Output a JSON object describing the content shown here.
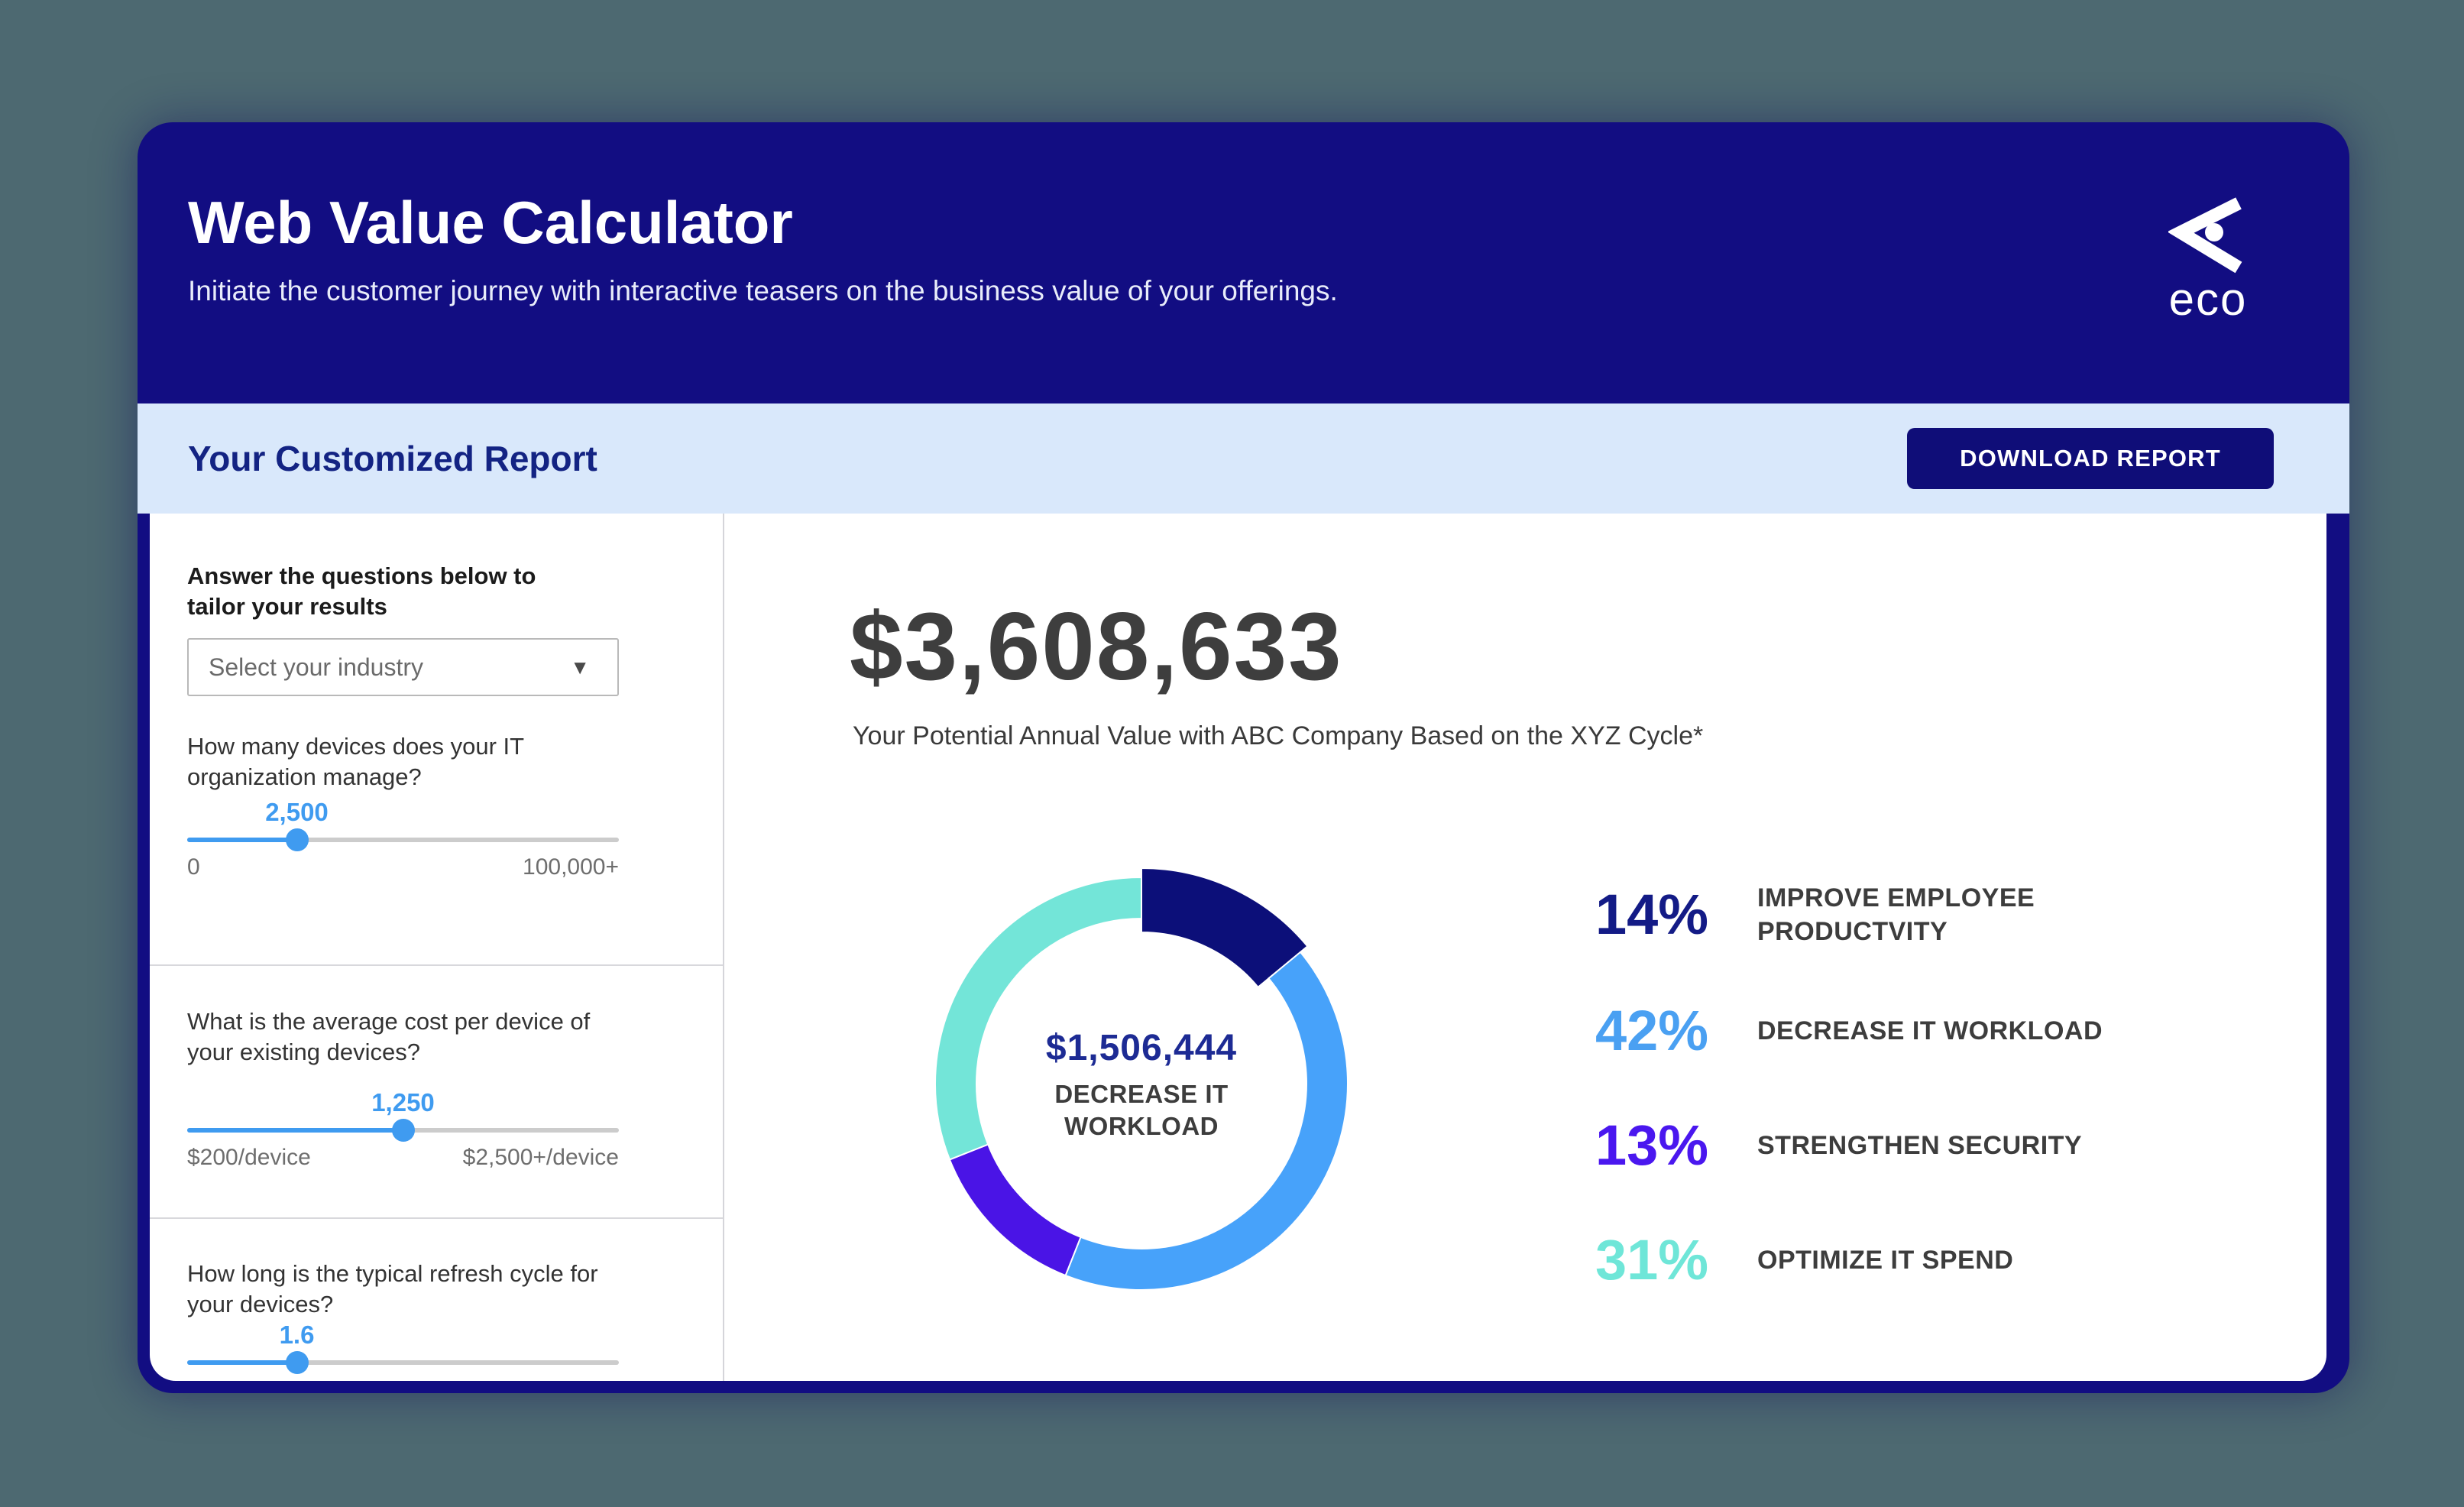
{
  "page": {
    "background_color": "#4d6971",
    "accent_navy": "#120d82",
    "accent_blue": "#3f9bf0"
  },
  "header": {
    "title": "Web Value Calculator",
    "subtitle": "Initiate the customer journey with interactive teasers on the business value of your offerings.",
    "logo_text": "eco"
  },
  "report_bar": {
    "title": "Your Customized Report",
    "download_label": "DOWNLOAD REPORT"
  },
  "sidebar": {
    "heading": "Answer the questions below to tailor your results",
    "industry_placeholder": "Select your industry",
    "questions": [
      {
        "text": "How many devices does your IT organization manage?",
        "value": "2,500",
        "position_pct": 25.4,
        "min_label": "0",
        "max_label": "100,000+"
      },
      {
        "text": "What is the average cost per device of your existing devices?",
        "value": "1,250",
        "position_pct": 50,
        "min_label": "$200/device",
        "max_label": "$2,500+/device"
      },
      {
        "text": "How long is the typical refresh cycle for your devices?",
        "value": "1.6",
        "position_pct": 25.4,
        "min_label": "",
        "max_label": ""
      }
    ]
  },
  "main": {
    "total_value": "$3,608,633",
    "total_caption": "Your Potential Annual Value with ABC Company Based on the XYZ Cycle*",
    "donut_center": {
      "value": "$1,506,444",
      "label": "DECREASE IT\nWORKLOAD"
    },
    "stats": [
      {
        "pct": "14%",
        "label": "IMPROVE EMPLOYEE\nPRODUCTVITY",
        "color": "#131b86"
      },
      {
        "pct": "42%",
        "label": "DECREASE IT WORKLOAD",
        "color": "#4aa0f2"
      },
      {
        "pct": "13%",
        "label": "STRENGTHEN SECURITY",
        "color": "#4a17ef"
      },
      {
        "pct": "31%",
        "label": "OPTIMIZE IT SPEND",
        "color": "#6fe6d8"
      }
    ]
  },
  "chart_data": {
    "type": "pie",
    "subtype": "donut",
    "labels": [
      "Improve employee productvity",
      "Decrease IT workload",
      "Strengthen security",
      "Optimize IT spend"
    ],
    "values": [
      14,
      42,
      13,
      31
    ],
    "colors": [
      "#0c0f79",
      "#47a2fa",
      "#4a14e6",
      "#73e5d8"
    ],
    "start_angle_deg": -90,
    "clockwise": true,
    "exploded_index": 0,
    "outer_radius": 270,
    "inner_radius": 216,
    "exploded_outer_radius": 282,
    "exploded_inner_radius": 198,
    "center_value": "$1,506,444",
    "center_label": "DECREASE IT WORKLOAD",
    "legend_position": "right"
  }
}
